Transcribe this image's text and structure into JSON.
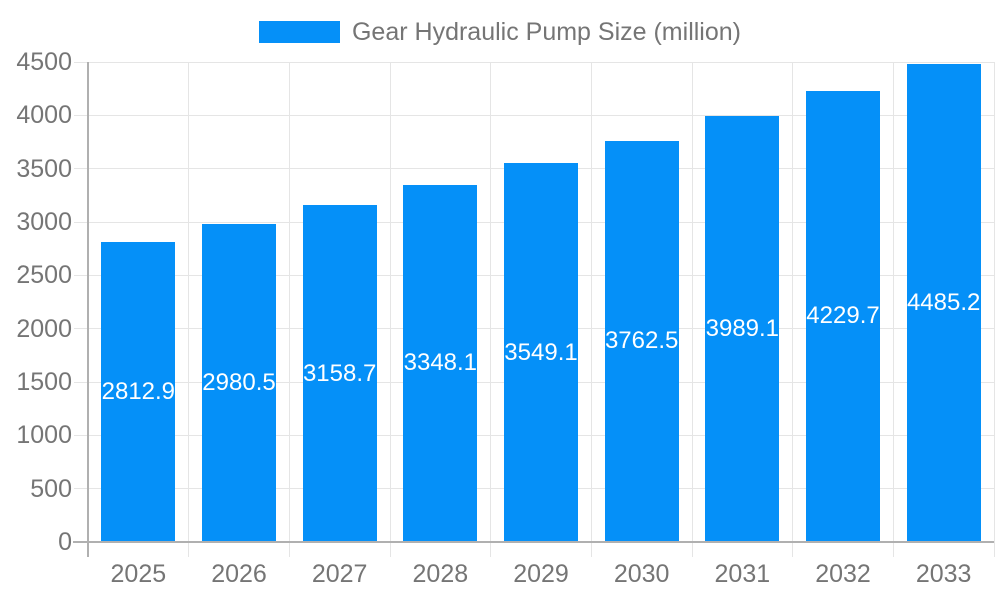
{
  "legend": {
    "label": "Gear Hydraulic Pump Size (million)"
  },
  "chart_data": {
    "type": "bar",
    "title": "",
    "xlabel": "",
    "ylabel": "",
    "categories": [
      "2025",
      "2026",
      "2027",
      "2028",
      "2029",
      "2030",
      "2031",
      "2032",
      "2033"
    ],
    "series": [
      {
        "name": "Gear Hydraulic Pump Size (million)",
        "values": [
          2812.9,
          2980.5,
          3158.7,
          3348.1,
          3549.1,
          3762.5,
          3989.1,
          4229.7,
          4485.2
        ]
      }
    ],
    "bar_labels": [
      "2812.9",
      "2980.5",
      "3158.7",
      "3348.1",
      "3549.1",
      "3762.5",
      "3989.1",
      "4229.7",
      "4485.2"
    ],
    "ylim": [
      0,
      4500
    ],
    "yticks": [
      0,
      500,
      1000,
      1500,
      2000,
      2500,
      3000,
      3500,
      4000,
      4500
    ],
    "grid": true,
    "legend_position": "top"
  },
  "colors": {
    "bar": "#0590f8",
    "grid": "#e5e5e5",
    "axis": "#b0b0b0",
    "text": "#757575",
    "bar_label": "#ffffff",
    "background": "#ffffff"
  }
}
